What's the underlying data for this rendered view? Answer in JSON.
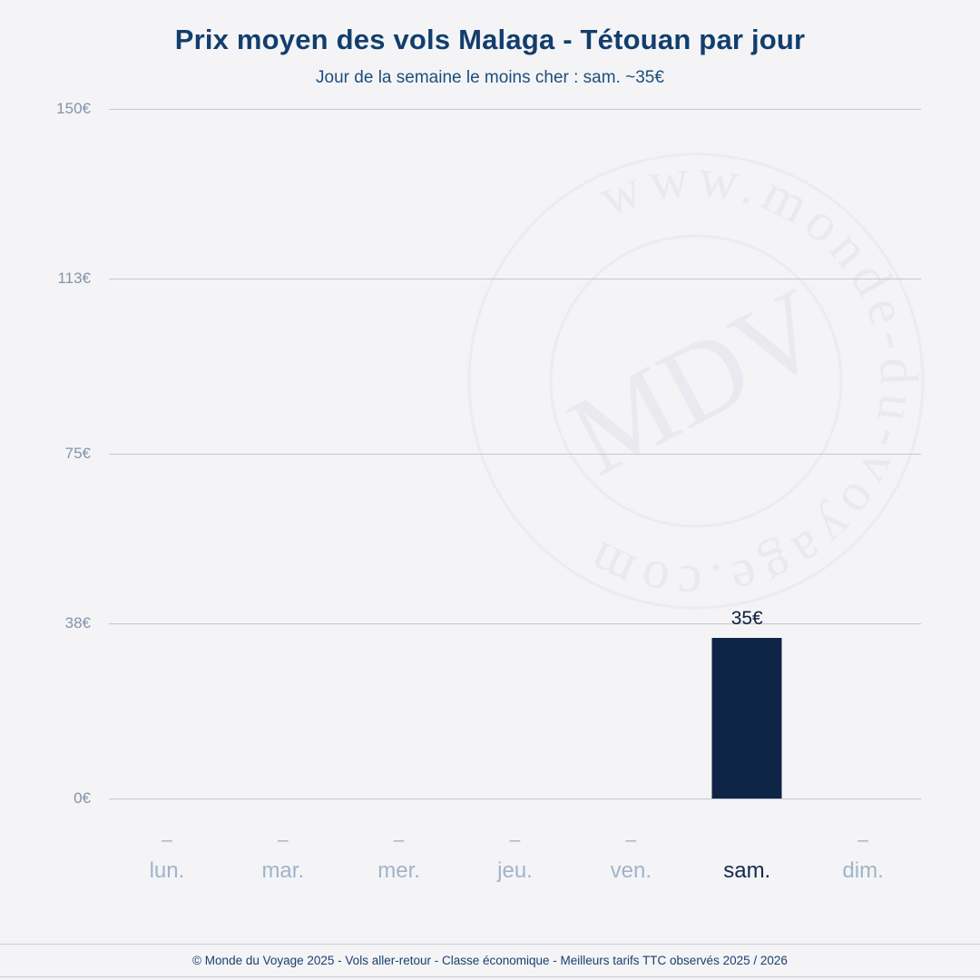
{
  "title": "Prix moyen des vols Malaga - Tétouan par jour",
  "subtitle": "Jour de la semaine le moins cher : sam. ~35€",
  "watermark": {
    "circle_text": "www.monde-du-voyage.com",
    "center_text": "MDV"
  },
  "footer": "© Monde du Voyage 2025 - Vols aller-retour - Classe économique - Meilleurs tarifs TTC observés 2025 / 2026",
  "colors": {
    "background": "#f4f4f6",
    "title_navy": "#123e6d",
    "bar_navy": "#0f2547",
    "inactive_label": "#9fb4ca",
    "gridline": "#c6c8ce"
  },
  "chart_data": {
    "type": "bar",
    "title": "Prix moyen des vols Malaga - Tétouan par jour",
    "categories": [
      "lun.",
      "mar.",
      "mer.",
      "jeu.",
      "ven.",
      "sam.",
      "dim."
    ],
    "values": [
      null,
      null,
      null,
      null,
      null,
      35,
      null
    ],
    "value_suffix": "€",
    "missing_marker": "–",
    "highlight_category": "sam.",
    "highlight_value_label": "35€",
    "yticks_labels": [
      "150€",
      "113€",
      "75€",
      "38€",
      "0€"
    ],
    "yticks_values": [
      150,
      113,
      75,
      38,
      0
    ],
    "ylim": [
      0,
      150
    ],
    "grid": true,
    "legend": false,
    "xlabel": "",
    "ylabel": ""
  }
}
